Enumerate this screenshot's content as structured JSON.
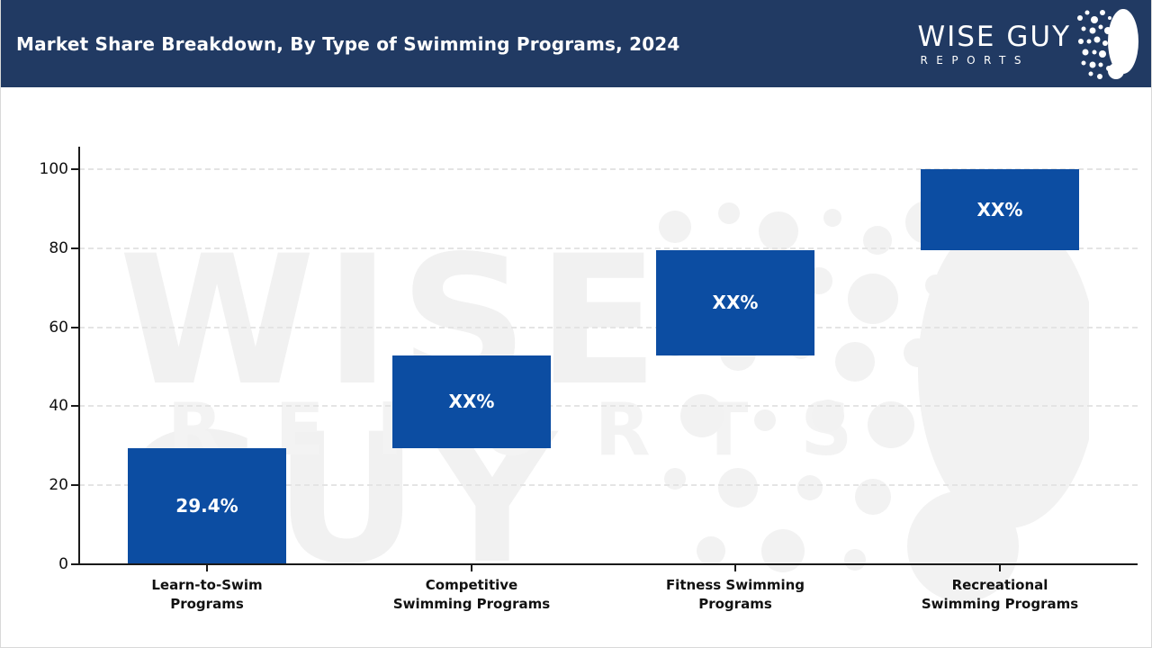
{
  "header": {
    "title": "Market Share Breakdown, By Type of Swimming Programs, 2024",
    "logo": {
      "line1": "WISE GUY",
      "line2": "REPORTS"
    }
  },
  "watermark": {
    "line1": "WISE GUY",
    "line2": "REPORTS"
  },
  "colors": {
    "header_bg": "#213A63",
    "bar_blue": "#0C4DA2",
    "watermark_gray": "#f1f1f1"
  },
  "chart_data": {
    "type": "bar",
    "subtype": "waterfall",
    "title": "Market Share Breakdown, By Type of Swimming Programs, 2024",
    "categories": [
      "Learn-to-Swim\nPrograms",
      "Competitive\nSwimming Programs",
      "Fitness Swimming\nPrograms",
      "Recreational\nSwimming Programs"
    ],
    "segments": [
      {
        "label": "29.4%",
        "start": 0,
        "end": 29.4
      },
      {
        "label": "XX%",
        "start": 29.4,
        "end": 52.9
      },
      {
        "label": "XX%",
        "start": 52.9,
        "end": 79.6
      },
      {
        "label": "XX%",
        "start": 79.6,
        "end": 100
      }
    ],
    "yticks": [
      0,
      20,
      40,
      60,
      80,
      100
    ],
    "ylim": [
      0,
      100
    ],
    "xlabel": "",
    "ylabel": "",
    "grid": "horizontal-dashed",
    "legend": "none",
    "bar_color": "#0C4DA2",
    "bar_label_color": "#ffffff"
  }
}
